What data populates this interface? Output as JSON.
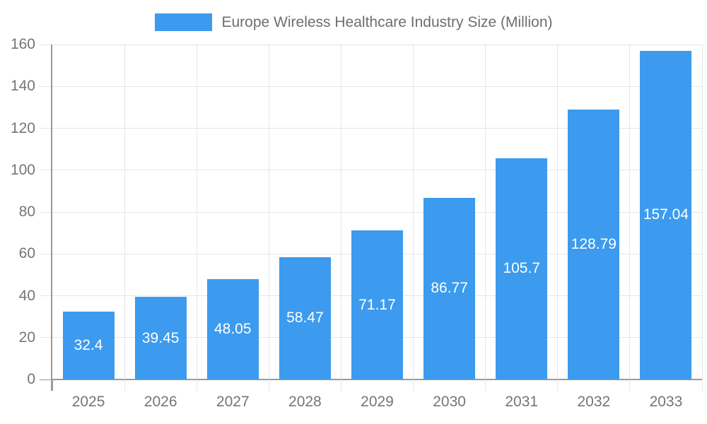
{
  "legend": {
    "label": "Europe Wireless Healthcare Industry Size (Million)"
  },
  "chart_data": {
    "type": "bar",
    "title": "Europe Wireless Healthcare Industry Size (Million)",
    "categories": [
      "2025",
      "2026",
      "2027",
      "2028",
      "2029",
      "2030",
      "2031",
      "2032",
      "2033"
    ],
    "values": [
      32.4,
      39.45,
      48.05,
      58.47,
      71.17,
      86.77,
      105.7,
      128.79,
      157.04
    ],
    "value_labels": [
      "32.4",
      "39.45",
      "48.05",
      "58.47",
      "71.17",
      "86.77",
      "105.7",
      "128.79",
      "157.04"
    ],
    "xlabel": "",
    "ylabel": "",
    "ylim": [
      0,
      160
    ],
    "ytick_step": 20,
    "yticks": [
      "0",
      "20",
      "40",
      "60",
      "80",
      "100",
      "120",
      "140",
      "160"
    ],
    "grid": true,
    "legend_position": "top",
    "bar_label_position": "center",
    "colors": {
      "bar": "#3C9BEE",
      "axis_text": "#757575",
      "legend_text": "#6E6E6E",
      "grid": "#E6E6E6",
      "axis_line": "#9A9A9A",
      "value_text": "#FFFFFF",
      "background": "#FFFFFF"
    }
  }
}
